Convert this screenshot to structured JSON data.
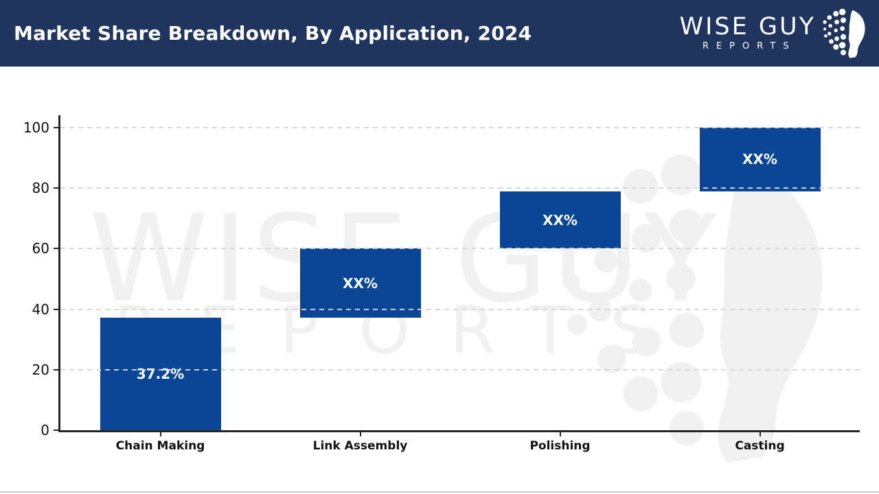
{
  "header": {
    "title": "Market Share Breakdown, By Application, 2024",
    "bg_color": "#20355e",
    "logo": {
      "line1": "WISE GUY",
      "line2": "REPORTS"
    }
  },
  "watermark": {
    "line1": "WISE GUY",
    "line2": "REPORTS"
  },
  "chart_data": {
    "type": "bar",
    "subtype": "waterfall",
    "title": "Market Share Breakdown, By Application, 2024",
    "categories": [
      "Chain Making",
      "Link Assembly",
      "Polishing",
      "Casting"
    ],
    "segments": [
      {
        "category": "Chain Making",
        "start": 0,
        "end": 37.2,
        "label": "37.2%"
      },
      {
        "category": "Link Assembly",
        "start": 37.2,
        "end": 60,
        "label": "XX%"
      },
      {
        "category": "Polishing",
        "start": 60,
        "end": 79,
        "label": "XX%"
      },
      {
        "category": "Casting",
        "start": 79,
        "end": 100,
        "label": "XX%"
      }
    ],
    "yticks": [
      0,
      20,
      40,
      60,
      80,
      100
    ],
    "ylim": [
      0,
      104
    ],
    "xlabel": "",
    "ylabel": "",
    "bar_color": "#0a4596",
    "label_color": "#ffffff",
    "grid": "dashed horizontal, light gray",
    "legend": "none"
  }
}
